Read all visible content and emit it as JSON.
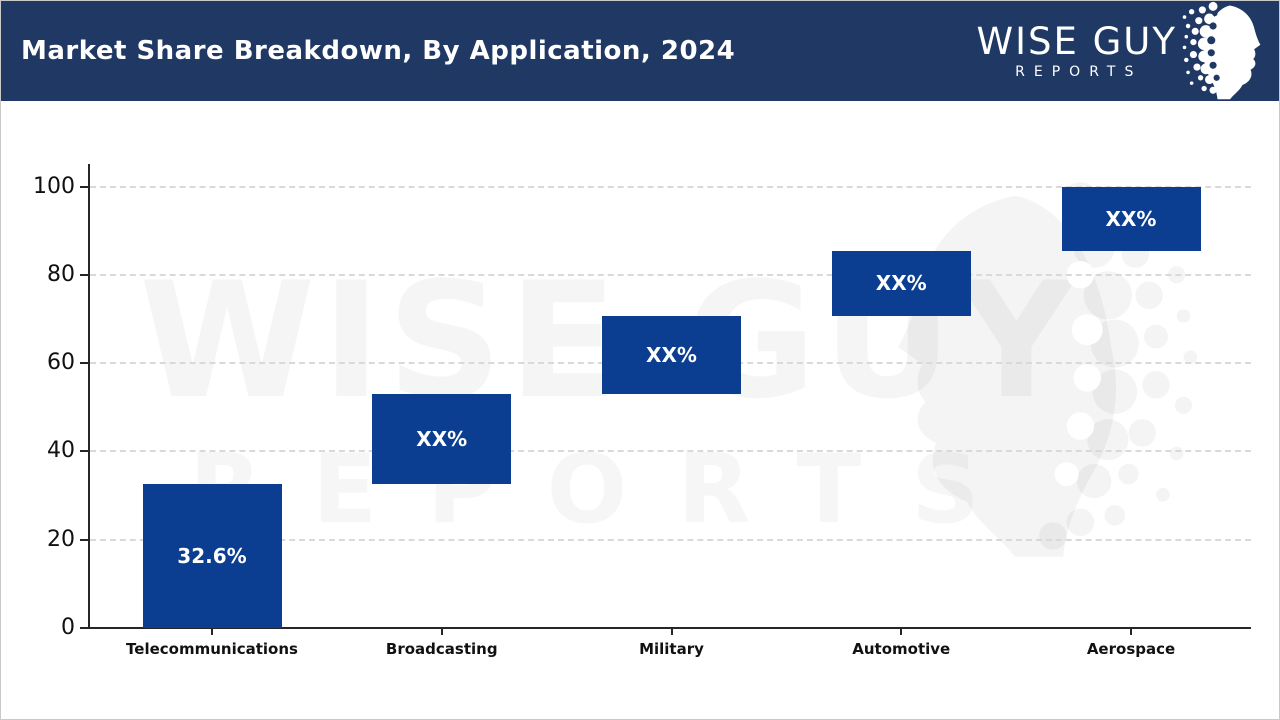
{
  "header": {
    "title": "Market Share Breakdown, By Application, 2024",
    "background": "#1F3864",
    "logo": {
      "primary": "WISE GUY",
      "secondary": "REPORTS",
      "icon": "head-silhouette-icon"
    }
  },
  "watermark": {
    "primary": "WISE GUY",
    "secondary": "REPORTS"
  },
  "colors": {
    "header_navy": "#1F3864",
    "bar_blue": "#0B3D91",
    "bar_label_white": "#ffffff",
    "gridline_gray": "#d9d9d9",
    "axis_black": "#262626",
    "page_border_gray": "#c9c9c9"
  },
  "chart_data": {
    "type": "bar",
    "subtype": "waterfall-floating-bars",
    "title": "Market Share Breakdown, By Application, 2024",
    "categories": [
      "Telecommunications",
      "Broadcasting",
      "Military",
      "Automotive",
      "Aerospace"
    ],
    "segments": [
      {
        "category": "Telecommunications",
        "start": 0,
        "end": 32.6,
        "label": "32.6%"
      },
      {
        "category": "Broadcasting",
        "start": 32.6,
        "end": 53.0,
        "label": "XX%"
      },
      {
        "category": "Military",
        "start": 53.0,
        "end": 70.7,
        "label": "XX%"
      },
      {
        "category": "Automotive",
        "start": 70.7,
        "end": 85.4,
        "label": "XX%"
      },
      {
        "category": "Aerospace",
        "start": 85.4,
        "end": 100.0,
        "label": "XX%"
      }
    ],
    "xlabel": "",
    "ylabel": "",
    "ylim": [
      0,
      100
    ],
    "yticks": [
      0,
      20,
      40,
      60,
      80,
      100
    ],
    "grid": "horizontal-dashed",
    "legend": "none",
    "bar_color": "#0B3D91",
    "label_color": "#ffffff"
  }
}
